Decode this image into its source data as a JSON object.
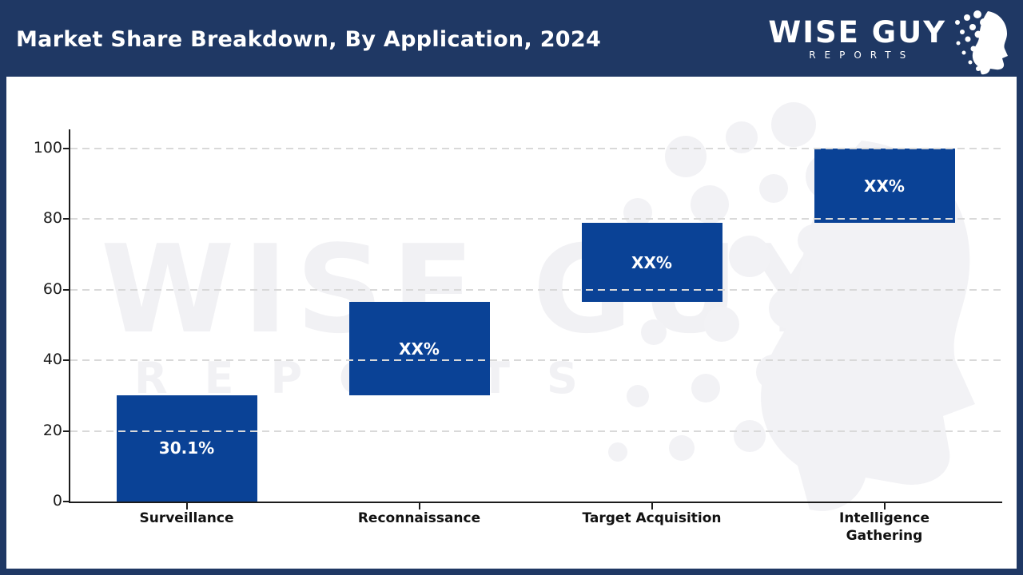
{
  "header": {
    "title": "Market Share Breakdown, By Application, 2024",
    "bg_color": "#1f3864",
    "logo": {
      "line1": "WISE GUY",
      "line2": "REPORTS",
      "icon": "dotted-face-profile"
    }
  },
  "watermark": {
    "line1": "WISE GUY",
    "line2": "REPORTS"
  },
  "chart_data": {
    "type": "bar",
    "subtype": "waterfall",
    "title": "Market Share Breakdown, By Application, 2024",
    "xlabel": "",
    "ylabel": "",
    "ylim": [
      0,
      100
    ],
    "yticks": [
      0,
      20,
      40,
      60,
      80,
      100
    ],
    "grid": "horizontal-dashed",
    "legend": "none",
    "bar_color": "#0a4296",
    "categories": [
      "Surveillance",
      "Reconnaissance",
      "Target Acquisition",
      "Intelligence Gathering"
    ],
    "bars": [
      {
        "category": "Surveillance",
        "start": 0,
        "end": 30.1,
        "value": 30.1,
        "label": "30.1%",
        "tick_lines": [
          "Surveillance"
        ]
      },
      {
        "category": "Reconnaissance",
        "start": 30.1,
        "end": 56.5,
        "value": 26.4,
        "label": "XX%",
        "tick_lines": [
          "Reconnaissance"
        ]
      },
      {
        "category": "Target Acquisition",
        "start": 56.5,
        "end": 78.9,
        "value": 22.4,
        "label": "XX%",
        "tick_lines": [
          "Target Acquisition"
        ]
      },
      {
        "category": "Intelligence Gathering",
        "start": 78.9,
        "end": 100,
        "value": 21.1,
        "label": "XX%",
        "tick_lines": [
          "Intelligence",
          "Gathering"
        ]
      }
    ]
  }
}
